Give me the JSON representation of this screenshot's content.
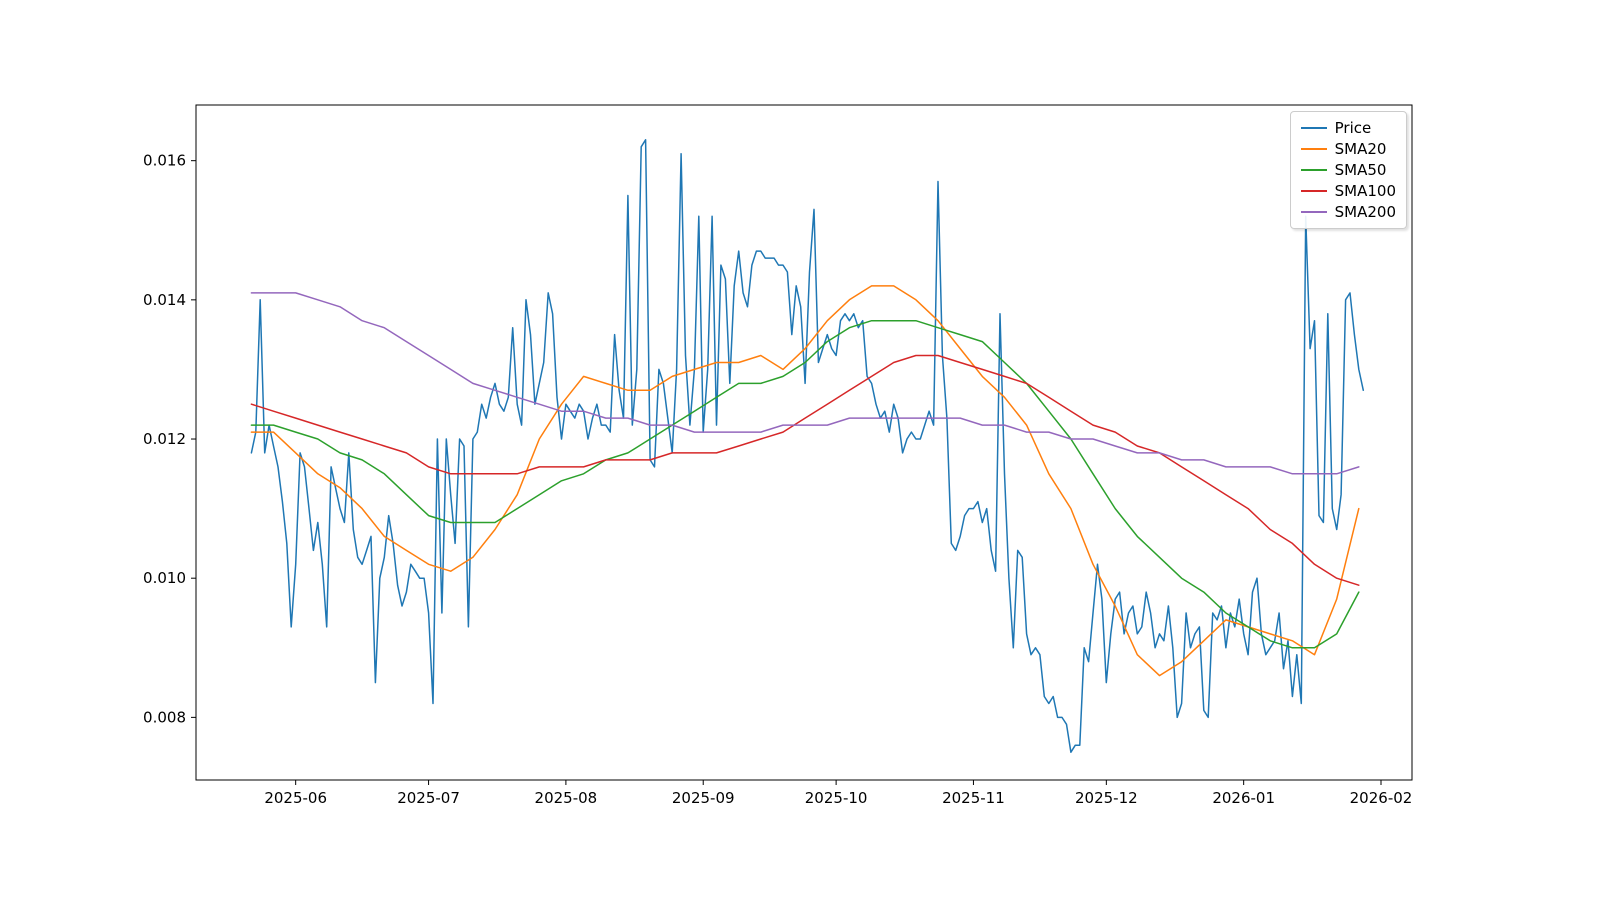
{
  "figure": {
    "background": "#ffffff",
    "axes_background": "#ffffff",
    "spine_color": "#000000",
    "tick_color": "#000000",
    "tick_label_color": "#000000"
  },
  "chart_data": {
    "type": "line",
    "title": "",
    "xlabel": "",
    "ylabel": "",
    "grid": false,
    "legend_position": "upper right",
    "x_unit": "days since 2025-05-22",
    "xlim": [
      -12.5,
      262
    ],
    "ylim": [
      0.0071,
      0.0168
    ],
    "x_ticks": [
      {
        "v": 10,
        "label": "2025-06"
      },
      {
        "v": 40,
        "label": "2025-07"
      },
      {
        "v": 71,
        "label": "2025-08"
      },
      {
        "v": 102,
        "label": "2025-09"
      },
      {
        "v": 132,
        "label": "2025-10"
      },
      {
        "v": 163,
        "label": "2025-11"
      },
      {
        "v": 193,
        "label": "2025-12"
      },
      {
        "v": 224,
        "label": "2026-01"
      },
      {
        "v": 255,
        "label": "2026-02"
      }
    ],
    "y_ticks": [
      {
        "v": 0.008,
        "label": "0.008"
      },
      {
        "v": 0.01,
        "label": "0.010"
      },
      {
        "v": 0.012,
        "label": "0.012"
      },
      {
        "v": 0.014,
        "label": "0.014"
      },
      {
        "v": 0.016,
        "label": "0.016"
      }
    ],
    "series": [
      {
        "name": "Price",
        "color": "#1f77b4",
        "x_start": 0,
        "x_step": 1,
        "values": [
          0.0118,
          0.0121,
          0.014,
          0.0118,
          0.0122,
          0.0119,
          0.0116,
          0.0111,
          0.0105,
          0.0093,
          0.0102,
          0.0118,
          0.0116,
          0.011,
          0.0104,
          0.0108,
          0.0102,
          0.0093,
          0.0116,
          0.0113,
          0.011,
          0.0108,
          0.0118,
          0.0107,
          0.0103,
          0.0102,
          0.0104,
          0.0106,
          0.0085,
          0.01,
          0.0103,
          0.0109,
          0.0105,
          0.0099,
          0.0096,
          0.0098,
          0.0102,
          0.0101,
          0.01,
          0.01,
          0.0095,
          0.0082,
          0.012,
          0.0095,
          0.012,
          0.0112,
          0.0105,
          0.012,
          0.0119,
          0.0093,
          0.012,
          0.0121,
          0.0125,
          0.0123,
          0.0126,
          0.0128,
          0.0125,
          0.0124,
          0.0126,
          0.0136,
          0.0125,
          0.0122,
          0.014,
          0.0135,
          0.0125,
          0.0128,
          0.0131,
          0.0141,
          0.0138,
          0.0126,
          0.012,
          0.0125,
          0.0124,
          0.0123,
          0.0125,
          0.0124,
          0.012,
          0.0123,
          0.0125,
          0.0122,
          0.0122,
          0.0121,
          0.0135,
          0.0127,
          0.0123,
          0.0155,
          0.0122,
          0.013,
          0.0162,
          0.0163,
          0.0117,
          0.0116,
          0.013,
          0.0128,
          0.0123,
          0.0118,
          0.013,
          0.0161,
          0.0132,
          0.0122,
          0.013,
          0.0152,
          0.0121,
          0.013,
          0.0152,
          0.0122,
          0.0145,
          0.0143,
          0.0128,
          0.0142,
          0.0147,
          0.0141,
          0.0139,
          0.0145,
          0.0147,
          0.0147,
          0.0146,
          0.0146,
          0.0146,
          0.0145,
          0.0145,
          0.0144,
          0.0135,
          0.0142,
          0.0139,
          0.0128,
          0.0144,
          0.0153,
          0.0131,
          0.0133,
          0.0135,
          0.0133,
          0.0132,
          0.0137,
          0.0138,
          0.0137,
          0.0138,
          0.0136,
          0.0137,
          0.0129,
          0.0128,
          0.0125,
          0.0123,
          0.0124,
          0.0121,
          0.0125,
          0.0123,
          0.0118,
          0.012,
          0.0121,
          0.012,
          0.012,
          0.0122,
          0.0124,
          0.0122,
          0.0157,
          0.0132,
          0.0123,
          0.0105,
          0.0104,
          0.0106,
          0.0109,
          0.011,
          0.011,
          0.0111,
          0.0108,
          0.011,
          0.0104,
          0.0101,
          0.0138,
          0.0115,
          0.01,
          0.009,
          0.0104,
          0.0103,
          0.0092,
          0.0089,
          0.009,
          0.0089,
          0.0083,
          0.0082,
          0.0083,
          0.008,
          0.008,
          0.0079,
          0.0075,
          0.0076,
          0.0076,
          0.009,
          0.0088,
          0.0095,
          0.0102,
          0.0097,
          0.0085,
          0.0092,
          0.0097,
          0.0098,
          0.0092,
          0.0095,
          0.0096,
          0.0092,
          0.0093,
          0.0098,
          0.0095,
          0.009,
          0.0092,
          0.0091,
          0.0096,
          0.009,
          0.008,
          0.0082,
          0.0095,
          0.009,
          0.0092,
          0.0093,
          0.0081,
          0.008,
          0.0095,
          0.0094,
          0.0096,
          0.009,
          0.0095,
          0.0093,
          0.0097,
          0.0092,
          0.0089,
          0.0098,
          0.01,
          0.0092,
          0.0089,
          0.009,
          0.0091,
          0.0095,
          0.0087,
          0.0091,
          0.0083,
          0.0089,
          0.0082,
          0.0152,
          0.0133,
          0.0137,
          0.0109,
          0.0108,
          0.0138,
          0.011,
          0.0107,
          0.0112,
          0.014,
          0.0141,
          0.0135,
          0.013,
          0.0127
        ]
      },
      {
        "name": "SMA20",
        "color": "#ff7f0e",
        "x_start": 0,
        "x_step": 5,
        "values": [
          0.0121,
          0.0121,
          0.0118,
          0.0115,
          0.0113,
          0.011,
          0.0106,
          0.0104,
          0.0102,
          0.0101,
          0.0103,
          0.0107,
          0.0112,
          0.012,
          0.0125,
          0.0129,
          0.0128,
          0.0127,
          0.0127,
          0.0129,
          0.013,
          0.0131,
          0.0131,
          0.0132,
          0.013,
          0.0133,
          0.0137,
          0.014,
          0.0142,
          0.0142,
          0.014,
          0.0137,
          0.0133,
          0.0129,
          0.0126,
          0.0122,
          0.0115,
          0.011,
          0.0102,
          0.0096,
          0.0089,
          0.0086,
          0.0088,
          0.0091,
          0.0094,
          0.0093,
          0.0092,
          0.0091,
          0.0089,
          0.0097,
          0.011
        ]
      },
      {
        "name": "SMA50",
        "color": "#2ca02c",
        "x_start": 0,
        "x_step": 5,
        "values": [
          0.0122,
          0.0122,
          0.0121,
          0.012,
          0.0118,
          0.0117,
          0.0115,
          0.0112,
          0.0109,
          0.0108,
          0.0108,
          0.0108,
          0.011,
          0.0112,
          0.0114,
          0.0115,
          0.0117,
          0.0118,
          0.012,
          0.0122,
          0.0124,
          0.0126,
          0.0128,
          0.0128,
          0.0129,
          0.0131,
          0.0134,
          0.0136,
          0.0137,
          0.0137,
          0.0137,
          0.0136,
          0.0135,
          0.0134,
          0.0131,
          0.0128,
          0.0124,
          0.012,
          0.0115,
          0.011,
          0.0106,
          0.0103,
          0.01,
          0.0098,
          0.0095,
          0.0093,
          0.0091,
          0.009,
          0.009,
          0.0092,
          0.0098
        ]
      },
      {
        "name": "SMA100",
        "color": "#d62728",
        "x_start": 0,
        "x_step": 5,
        "values": [
          0.0125,
          0.0124,
          0.0123,
          0.0122,
          0.0121,
          0.012,
          0.0119,
          0.0118,
          0.0116,
          0.0115,
          0.0115,
          0.0115,
          0.0115,
          0.0116,
          0.0116,
          0.0116,
          0.0117,
          0.0117,
          0.0117,
          0.0118,
          0.0118,
          0.0118,
          0.0119,
          0.012,
          0.0121,
          0.0123,
          0.0125,
          0.0127,
          0.0129,
          0.0131,
          0.0132,
          0.0132,
          0.0131,
          0.013,
          0.0129,
          0.0128,
          0.0126,
          0.0124,
          0.0122,
          0.0121,
          0.0119,
          0.0118,
          0.0116,
          0.0114,
          0.0112,
          0.011,
          0.0107,
          0.0105,
          0.0102,
          0.01,
          0.0099
        ]
      },
      {
        "name": "SMA200",
        "color": "#9467bd",
        "x_start": 0,
        "x_step": 5,
        "values": [
          0.0141,
          0.0141,
          0.0141,
          0.014,
          0.0139,
          0.0137,
          0.0136,
          0.0134,
          0.0132,
          0.013,
          0.0128,
          0.0127,
          0.0126,
          0.0125,
          0.0124,
          0.0124,
          0.0123,
          0.0123,
          0.0122,
          0.0122,
          0.0121,
          0.0121,
          0.0121,
          0.0121,
          0.0122,
          0.0122,
          0.0122,
          0.0123,
          0.0123,
          0.0123,
          0.0123,
          0.0123,
          0.0123,
          0.0122,
          0.0122,
          0.0121,
          0.0121,
          0.012,
          0.012,
          0.0119,
          0.0118,
          0.0118,
          0.0117,
          0.0117,
          0.0116,
          0.0116,
          0.0116,
          0.0115,
          0.0115,
          0.0115,
          0.0116
        ]
      }
    ]
  }
}
